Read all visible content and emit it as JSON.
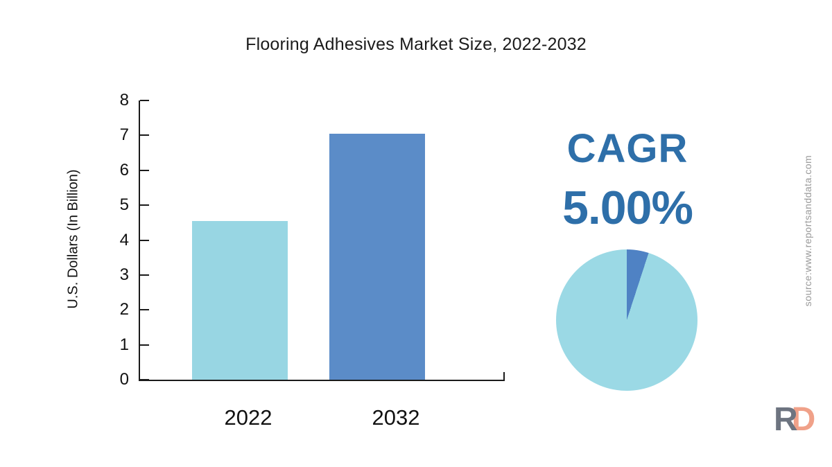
{
  "title": "Flooring Adhesives Market Size, 2022-2032",
  "source_credit": "source:www.reportsanddata.com",
  "cagr": {
    "label": "CAGR",
    "value": "5.00%"
  },
  "logo": {
    "letter_r": "R",
    "letter_d": "D"
  },
  "colors": {
    "bar_2022": "#98d6e3",
    "bar_2032": "#5b8cc8",
    "pie_slice": "#4f82c4",
    "pie_main": "#9bd9e5",
    "cagr_text": "#2e6fa9",
    "axis": "#1a1a1a",
    "tick_text": "#111111",
    "source_text": "#9a9a9a",
    "logo_r": "#6d7480",
    "logo_d": "#f0a189"
  },
  "chart_data": [
    {
      "type": "bar",
      "title": "Flooring Adhesives Market Size, 2022-2032",
      "categories": [
        "2022",
        "2032"
      ],
      "values": [
        4.55,
        7.05
      ],
      "unit": "U.S. Dollars (In Billion)",
      "xlabel": "",
      "ylabel": "U.S. Dollars (In Billion)",
      "ylim": [
        0,
        8
      ],
      "yticks": [
        0,
        1,
        2,
        3,
        4,
        5,
        6,
        7,
        8
      ],
      "grid": false,
      "legend": "none",
      "bar_colors": [
        "#98d6e3",
        "#5b8cc8"
      ]
    },
    {
      "type": "pie",
      "title": "CAGR 5.00%",
      "labels": [
        "CAGR 5.00%",
        "remainder"
      ],
      "values": [
        5,
        95
      ],
      "colors": [
        "#4f82c4",
        "#9bd9e5"
      ],
      "start_angle_deg": 0,
      "direction": "clockwise",
      "legend": "none"
    }
  ]
}
